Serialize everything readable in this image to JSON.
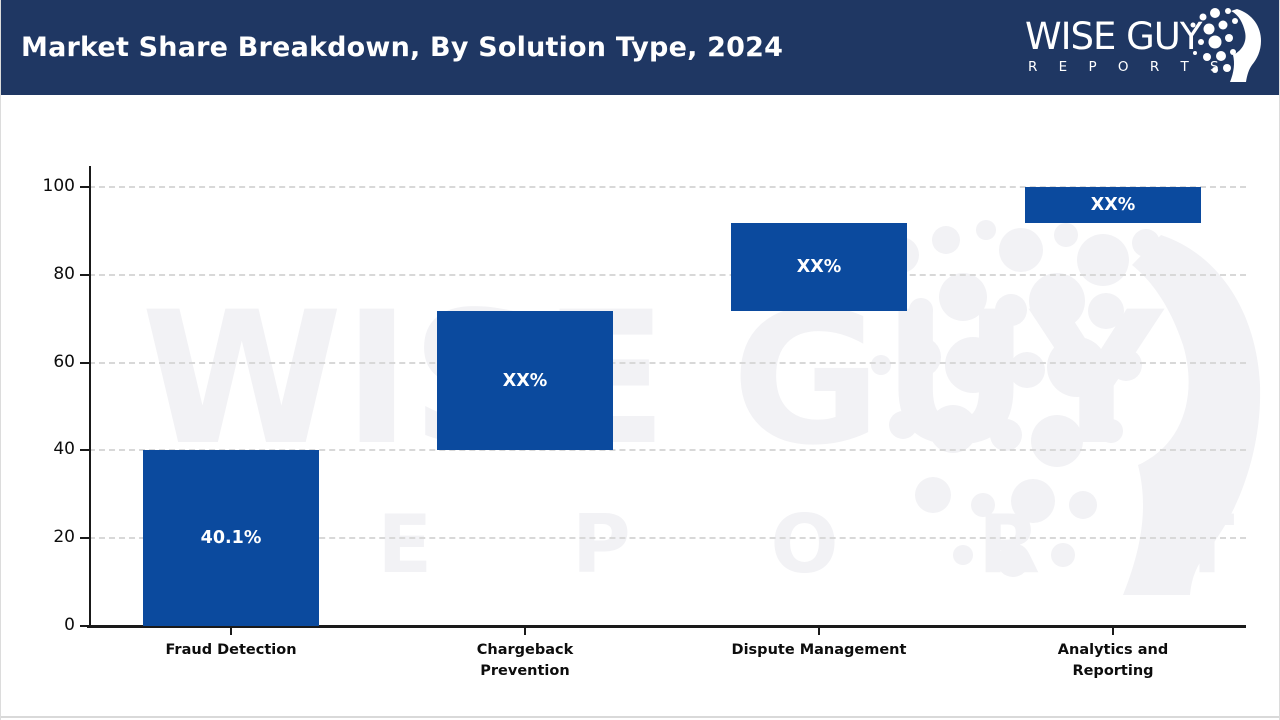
{
  "header": {
    "title": "Market Share Breakdown, By Solution Type, 2024",
    "logo": {
      "name": "Wise Guy Reports logo",
      "line1": "WISE GUY",
      "line2": "R E P O R T S"
    }
  },
  "watermark": {
    "line1": "WISE GUY",
    "line2": "R E P O R T S"
  },
  "chart_data": {
    "type": "bar",
    "subtype": "waterfall",
    "title": "Market Share Breakdown, By Solution Type, 2024",
    "xlabel": "",
    "ylabel": "",
    "ylim": [
      0,
      105
    ],
    "yticks": [
      0,
      20,
      40,
      60,
      80,
      100
    ],
    "grid": "horizontal-dashed",
    "legend": "none",
    "bar_color": "#0b4a9e",
    "bar_label_color": "#ffffff",
    "categories": [
      [
        "Fraud Detection"
      ],
      [
        "Chargeback",
        "Prevention"
      ],
      [
        "Dispute Management"
      ],
      [
        "Analytics and",
        "Reporting"
      ]
    ],
    "segments": [
      {
        "category": "Fraud Detection",
        "from": 0,
        "to": 40.1,
        "label": "40.1%"
      },
      {
        "category": "Chargeback Prevention",
        "from": 40.1,
        "to": 71.7,
        "label": "XX%"
      },
      {
        "category": "Dispute Management",
        "from": 71.7,
        "to": 91.9,
        "label": "XX%"
      },
      {
        "category": "Analytics and Reporting",
        "from": 91.9,
        "to": 100,
        "label": "XX%"
      }
    ]
  },
  "colors": {
    "header_bg": "#1f3763",
    "bar": "#0b4a9e",
    "grid": "#d8d8d8",
    "axis": "#1a1a1a",
    "text": "#0d0d0d",
    "watermark": "#f2f2f5"
  }
}
